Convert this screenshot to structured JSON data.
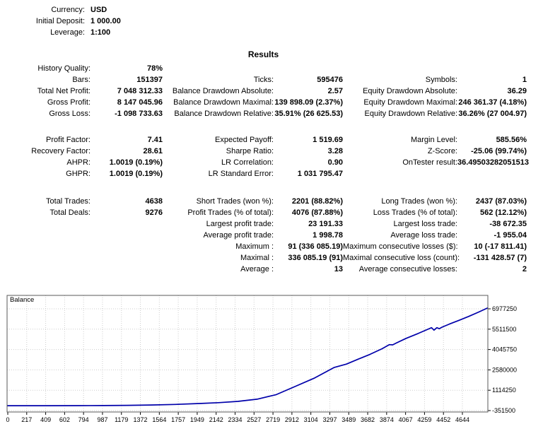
{
  "header": {
    "rows": [
      {
        "label": "Currency:",
        "value": "USD"
      },
      {
        "label": "Initial Deposit:",
        "value": "1 000.00"
      },
      {
        "label": "Leverage:",
        "value": "1:100"
      }
    ]
  },
  "title": "Results",
  "stats": {
    "blocks": [
      {
        "rows": [
          [
            "History Quality:",
            "78%",
            "",
            "",
            "",
            ""
          ],
          [
            "Bars:",
            "151397",
            "Ticks:",
            "595476",
            "Symbols:",
            "1"
          ],
          [
            "Total Net Profit:",
            "7 048 312.33",
            "Balance Drawdown Absolute:",
            "2.57",
            "Equity Drawdown Absolute:",
            "36.29"
          ],
          [
            "Gross Profit:",
            "8 147 045.96",
            "Balance Drawdown Maximal:",
            "139 898.09 (2.37%)",
            "Equity Drawdown Maximal:",
            "246 361.37 (4.18%)"
          ],
          [
            "Gross Loss:",
            "-1 098 733.63",
            "Balance Drawdown Relative:",
            "35.91% (26 625.53)",
            "Equity Drawdown Relative:",
            "36.26% (27 004.97)"
          ]
        ]
      },
      {
        "rows": [
          [
            "Profit Factor:",
            "7.41",
            "Expected Payoff:",
            "1 519.69",
            "Margin Level:",
            "585.56%"
          ],
          [
            "Recovery Factor:",
            "28.61",
            "Sharpe Ratio:",
            "3.28",
            "Z-Score:",
            "-25.06 (99.74%)"
          ],
          [
            "AHPR:",
            "1.0019 (0.19%)",
            "LR Correlation:",
            "0.90",
            "OnTester result:",
            "36.49503282051513"
          ],
          [
            "GHPR:",
            "1.0019 (0.19%)",
            "LR Standard Error:",
            "1 031 795.47",
            "",
            ""
          ]
        ]
      },
      {
        "rows": [
          [
            "Total Trades:",
            "4638",
            "Short Trades (won %):",
            "2201 (88.82%)",
            "Long Trades (won %):",
            "2437 (87.03%)"
          ],
          [
            "Total Deals:",
            "9276",
            "Profit Trades (% of total):",
            "4076 (87.88%)",
            "Loss Trades (% of total):",
            "562 (12.12%)"
          ],
          [
            "",
            "",
            "Largest profit trade:",
            "23 191.33",
            "Largest loss trade:",
            "-38 672.35"
          ],
          [
            "",
            "",
            "Average profit trade:",
            "1 998.78",
            "Average loss trade:",
            "-1 955.04"
          ],
          [
            "",
            "",
            "Maximum :",
            "91 (336 085.19)",
            "Maximum consecutive losses ($):",
            "10 (-17 811.41)"
          ],
          [
            "",
            "",
            "Maximal :",
            "336 085.19 (91)",
            "Maximal consecutive loss (count):",
            "-131 428.57 (7)"
          ],
          [
            "",
            "",
            "Average :",
            "13",
            "Average consecutive losses:",
            "2"
          ]
        ]
      }
    ]
  },
  "chart_data": {
    "type": "line",
    "title": "Balance",
    "series_label": "Balance",
    "line_color": "#0000AA",
    "grid_color": "#CDCDCD",
    "frame_color": "#5A5A5A",
    "x_ticks": [
      0,
      217,
      409,
      602,
      794,
      987,
      1179,
      1372,
      1564,
      1757,
      1949,
      2142,
      2334,
      2527,
      2719,
      2912,
      3104,
      3297,
      3489,
      3682,
      3874,
      4067,
      4259,
      4452,
      4644
    ],
    "y_ticks": [
      6977250,
      5511500,
      4045750,
      2580000,
      1114250,
      -351500
    ],
    "ylim": [
      -453000,
      7945000
    ],
    "legend_position": "top-left",
    "series": [
      {
        "name": "Balance",
        "points": [
          [
            0.0,
            1000
          ],
          [
            0.08,
            2000
          ],
          [
            0.15,
            5000
          ],
          [
            0.2,
            12000
          ],
          [
            0.25,
            25000
          ],
          [
            0.3,
            50000
          ],
          [
            0.35,
            90000
          ],
          [
            0.4,
            160000
          ],
          [
            0.44,
            220000
          ],
          [
            0.48,
            310000
          ],
          [
            0.52,
            470000
          ],
          [
            0.56,
            800000
          ],
          [
            0.6,
            1400000
          ],
          [
            0.64,
            2000000
          ],
          [
            0.68,
            2750000
          ],
          [
            0.706,
            3000000
          ],
          [
            0.73,
            3350000
          ],
          [
            0.755,
            3700000
          ],
          [
            0.78,
            4100000
          ],
          [
            0.795,
            4400000
          ],
          [
            0.802,
            4380000
          ],
          [
            0.81,
            4520000
          ],
          [
            0.83,
            4850000
          ],
          [
            0.855,
            5200000
          ],
          [
            0.875,
            5500000
          ],
          [
            0.883,
            5620000
          ],
          [
            0.888,
            5440000
          ],
          [
            0.894,
            5620000
          ],
          [
            0.899,
            5550000
          ],
          [
            0.905,
            5660000
          ],
          [
            0.92,
            5880000
          ],
          [
            0.94,
            6150000
          ],
          [
            0.96,
            6430000
          ],
          [
            0.98,
            6730000
          ],
          [
            1.0,
            7049312
          ]
        ]
      }
    ]
  }
}
